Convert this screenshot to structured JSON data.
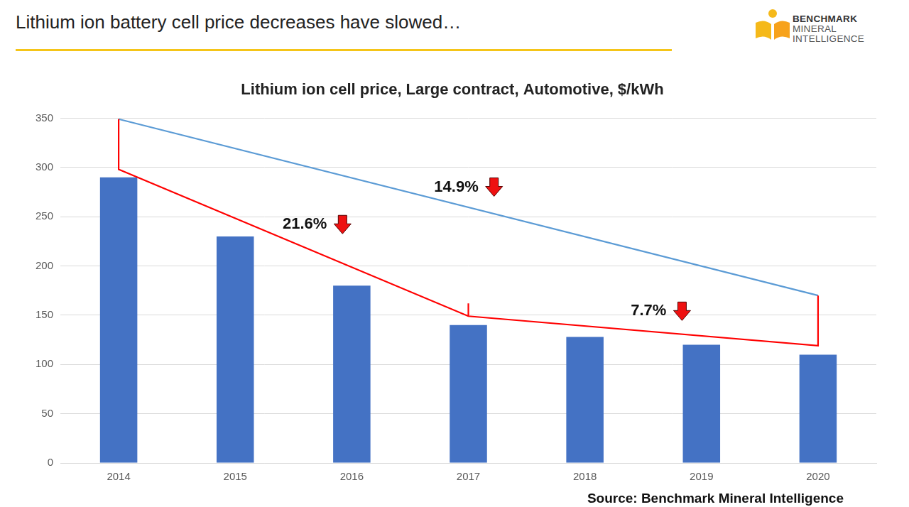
{
  "header": {
    "title": "Lithium ion battery cell price decreases have slowed…",
    "logo": [
      "BENCHMARK",
      "MINERAL",
      "INTELLIGENCE"
    ]
  },
  "chart_data": {
    "type": "bar",
    "title": "Lithium ion cell price, Large contract, Automotive, $/kWh",
    "source": "Source: Benchmark Mineral Intelligence",
    "categories": [
      "2014",
      "2015",
      "2016",
      "2017",
      "2018",
      "2019",
      "2020"
    ],
    "values": [
      290,
      230,
      180,
      140,
      128,
      120,
      110
    ],
    "color": "#4472c4",
    "ylim": [
      0,
      350
    ],
    "yticks": [
      0,
      50,
      100,
      150,
      200,
      250,
      300,
      350
    ],
    "grid": true,
    "annotations": {
      "lines": [
        {
          "color": "#5b9bd5",
          "points": [
            [
              2014,
              349
            ],
            [
              2020,
              170
            ]
          ]
        },
        {
          "color": "#ff0000",
          "points": [
            [
              2014,
              349
            ],
            [
              2014,
              298
            ],
            [
              2017,
              149
            ],
            [
              2020,
              119
            ],
            [
              2020,
              170
            ]
          ]
        },
        {
          "color": "#ff0000",
          "points": [
            [
              2017,
              149
            ],
            [
              2017,
              162
            ]
          ]
        }
      ],
      "labels": [
        {
          "text": "21.6%",
          "x": 2015.7,
          "y": 242
        },
        {
          "text": "14.9%",
          "x": 2017.0,
          "y": 280
        },
        {
          "text": "7.7%",
          "x": 2018.65,
          "y": 154
        }
      ]
    }
  }
}
